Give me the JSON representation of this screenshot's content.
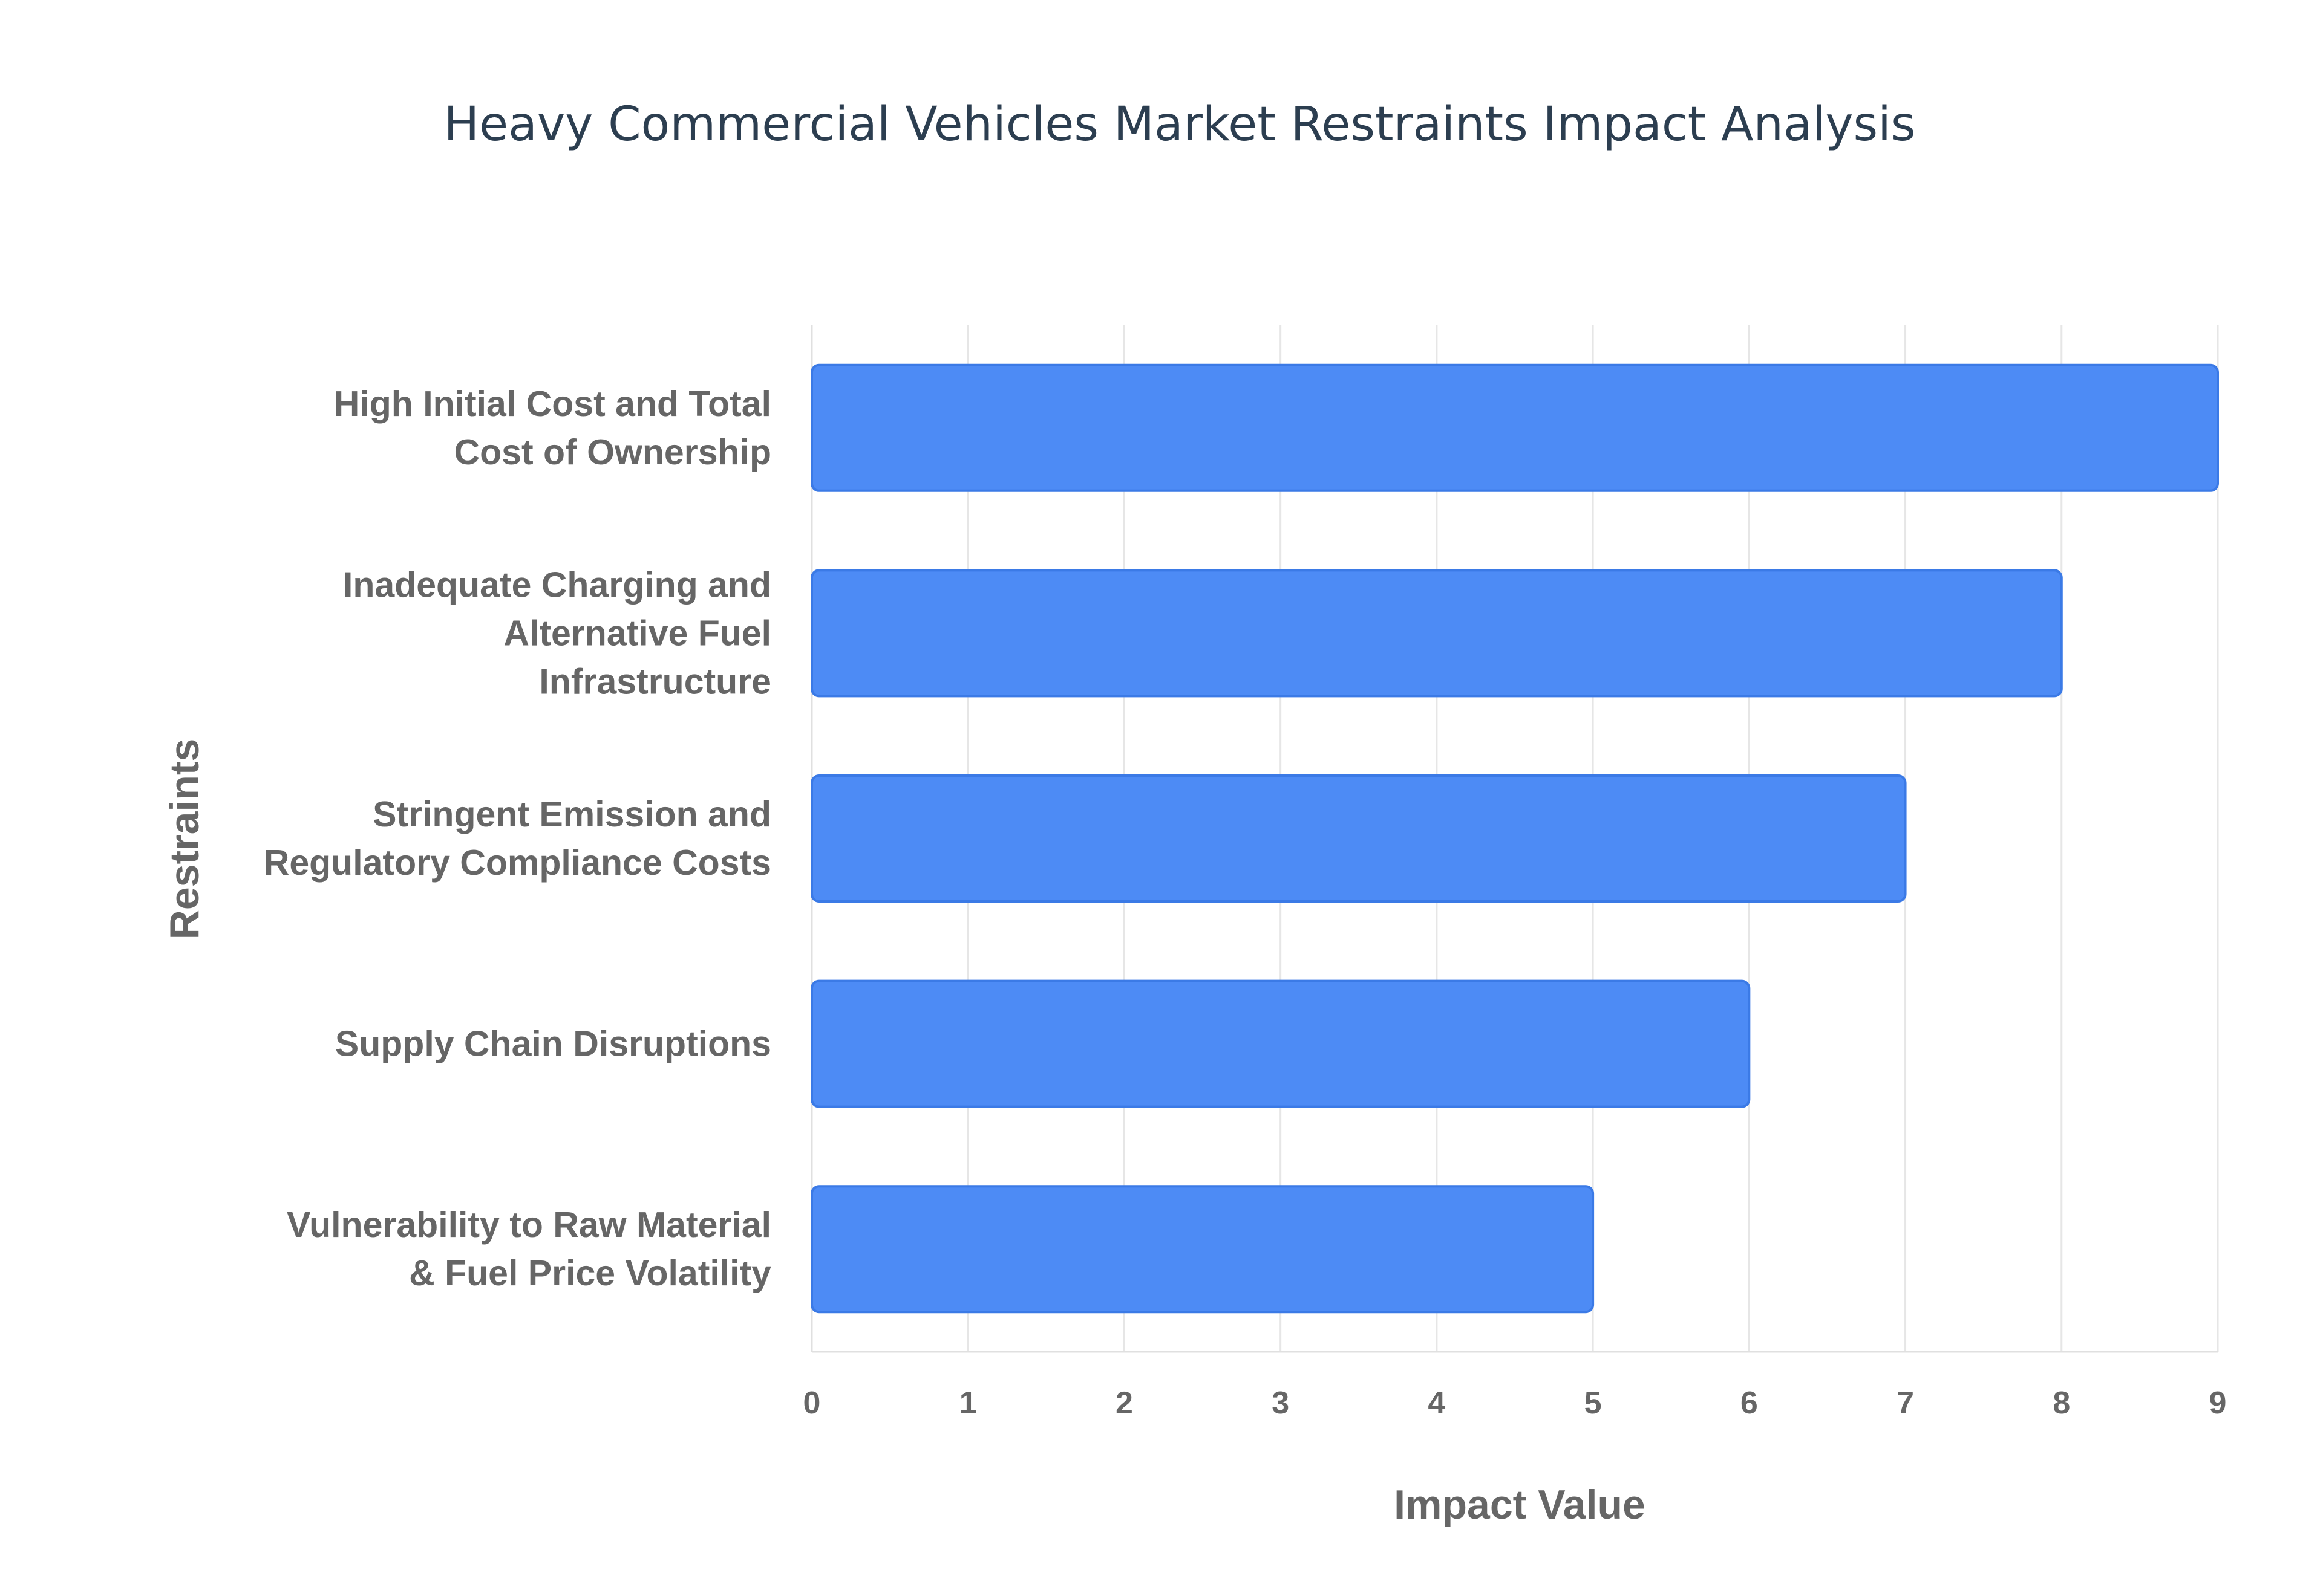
{
  "chart_data": {
    "type": "bar",
    "orientation": "horizontal",
    "title": "Heavy Commercial Vehicles Market Restraints Impact Analysis",
    "xlabel": "Impact Value",
    "ylabel": "Restraints",
    "categories": [
      [
        "High Initial Cost and Total",
        "Cost of Ownership"
      ],
      [
        "Inadequate Charging and",
        "Alternative Fuel",
        "Infrastructure"
      ],
      [
        "Stringent Emission and",
        "Regulatory Compliance Costs"
      ],
      [
        "Supply Chain Disruptions"
      ],
      [
        "Vulnerability to Raw Material",
        "& Fuel Price Volatility"
      ]
    ],
    "series": [
      {
        "values": [
          9,
          8,
          7,
          6,
          5
        ],
        "color": "#4d8bf5",
        "edge_color": "#3b7ae6"
      }
    ],
    "xlim": [
      0,
      9
    ],
    "xticks": [
      0,
      1,
      2,
      3,
      4,
      5,
      6,
      7,
      8,
      9
    ],
    "grid": true,
    "legend": "none"
  }
}
